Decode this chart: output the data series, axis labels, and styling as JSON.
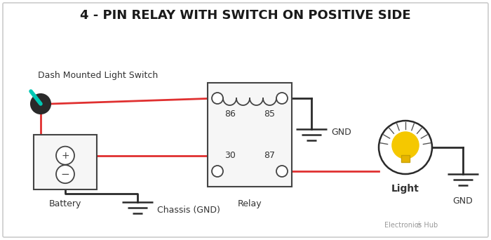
{
  "title": "4 - PIN RELAY WITH SWITCH ON POSITIVE SIDE",
  "bg_color": "#ffffff",
  "border_color": "#cccccc",
  "wire_red": "#e03030",
  "wire_black": "#2a2a2a",
  "relay_label": "Relay",
  "switch_label": "Dash Mounted Light Switch",
  "battery_label": "Battery",
  "chassis_label": "Chassis (GND)",
  "gnd_label1": "GND",
  "gnd_label2": "GND",
  "light_label": "Light",
  "electronicshub_text": "Electronics Hub",
  "title_fontsize": 13,
  "label_fontsize": 9
}
